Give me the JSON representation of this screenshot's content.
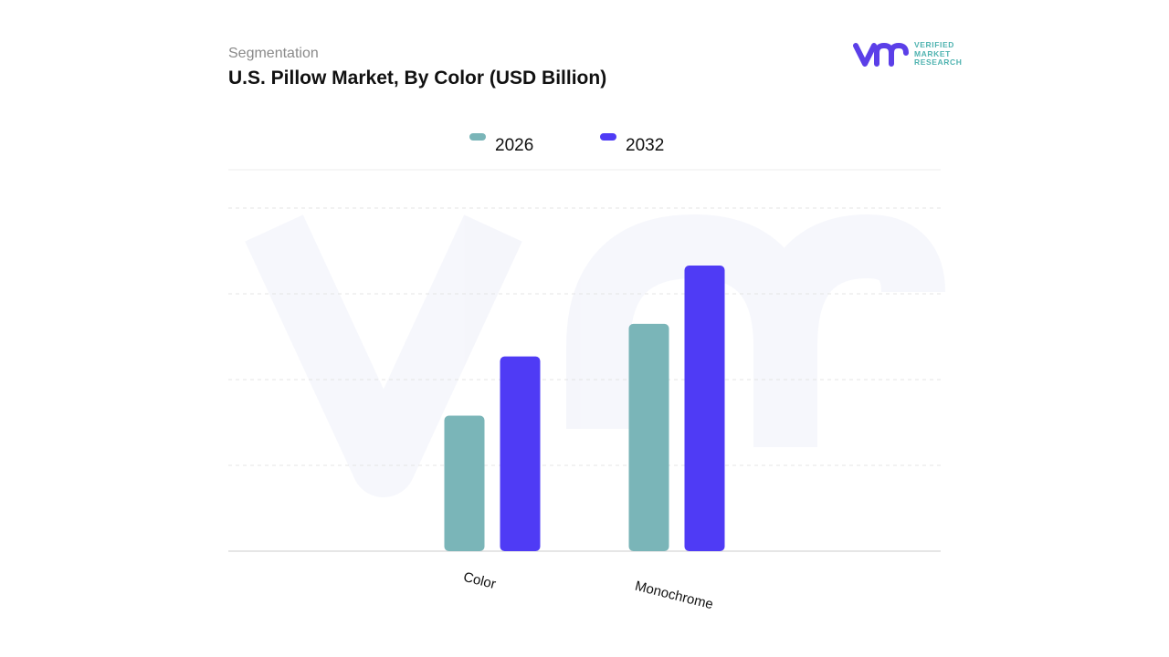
{
  "header": {
    "subtitle": "Segmentation",
    "title": "U.S. Pillow Market, By Color (USD Billion)"
  },
  "logo": {
    "lines": [
      "VERIFIED",
      "MARKET",
      "RESEARCH"
    ],
    "colors": {
      "mark": "#5b3fe8",
      "text": "#4fb3b0"
    }
  },
  "chart_data": {
    "type": "bar",
    "title": "U.S. Pillow Market, By Color (USD Billion)",
    "categories": [
      "Color",
      "Monochrome"
    ],
    "series": [
      {
        "name": "2026",
        "color": "#7ab5b8",
        "values": [
          1.58,
          2.65
        ]
      },
      {
        "name": "2032",
        "color": "#4f3bf5",
        "values": [
          2.27,
          3.33
        ]
      }
    ],
    "ylim": [
      0,
      4
    ],
    "grid": true,
    "legend": "top-center",
    "xlabel": "",
    "ylabel": ""
  }
}
